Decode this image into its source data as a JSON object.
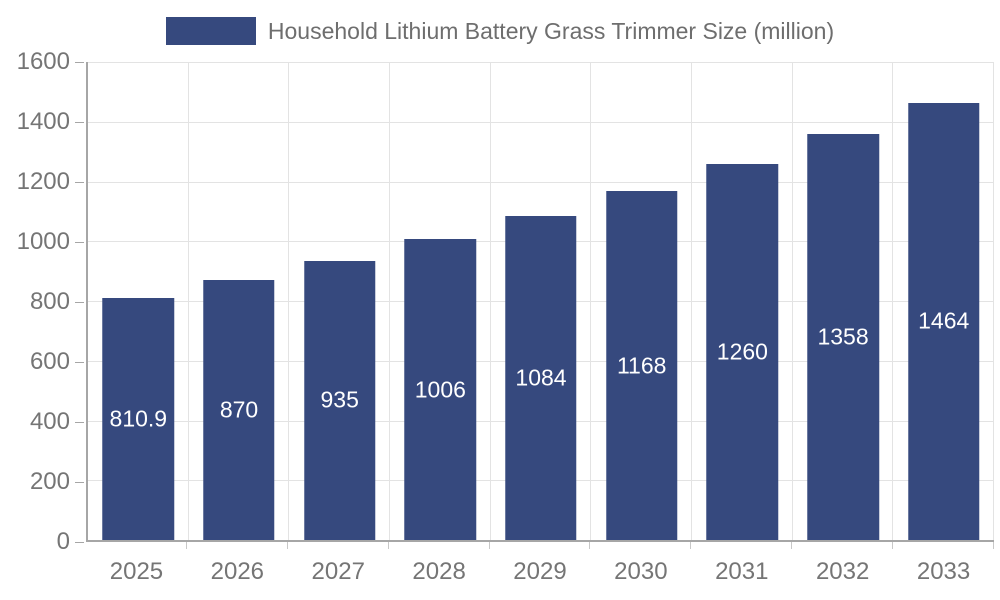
{
  "chart_data": {
    "type": "bar",
    "title": "Household Lithium Battery Grass Trimmer Size (million)",
    "categories": [
      "2025",
      "2026",
      "2027",
      "2028",
      "2029",
      "2030",
      "2031",
      "2032",
      "2033"
    ],
    "values": [
      810.9,
      870,
      935,
      1006,
      1084,
      1168,
      1260,
      1358,
      1464
    ],
    "value_labels": [
      "810.9",
      "870",
      "935",
      "1006",
      "1084",
      "1168",
      "1260",
      "1358",
      "1464"
    ],
    "xlabel": "",
    "ylabel": "",
    "ylim": [
      0,
      1600
    ],
    "yticks": [
      0,
      200,
      400,
      600,
      800,
      1000,
      1200,
      1400,
      1600
    ],
    "grid": true,
    "legend_position": "top",
    "colors": {
      "bar": "#36497E",
      "bar_label": "#FFFFFF",
      "axis_text": "#757575",
      "title_text": "#6E6E6E",
      "gridline": "#E3E3E3",
      "axis_line": "#A6A6A6",
      "background": "#FFFFFF"
    }
  }
}
